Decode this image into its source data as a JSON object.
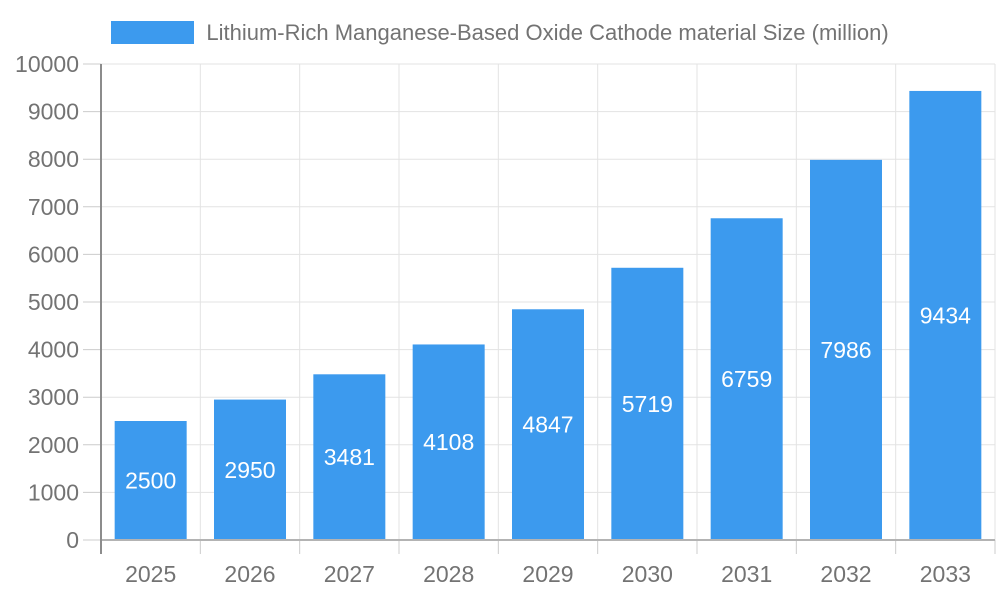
{
  "legend": {
    "label": "Lithium-Rich Manganese-Based Oxide Cathode material Size (million)"
  },
  "colors": {
    "bar": "#3C9AEE",
    "bar_label": "#FFFFFF",
    "axis_text": "#737373",
    "legend_text": "#737373",
    "y_axis_line": "#8C8C8C",
    "x_axis_line": "#B3B3B3",
    "gridline": "#E3E3E3",
    "tick": "#CCCCCC",
    "background": "#FFFFFF"
  },
  "chart_data": {
    "type": "bar",
    "title": "Lithium-Rich Manganese-Based Oxide Cathode material Size (million)",
    "categories": [
      "2025",
      "2026",
      "2027",
      "2028",
      "2029",
      "2030",
      "2031",
      "2032",
      "2033"
    ],
    "values": [
      2500,
      2950,
      3481,
      4108,
      4847,
      5719,
      6759,
      7986,
      9434
    ],
    "series_name": "Lithium-Rich Manganese-Based Oxide Cathode material Size (million)",
    "xlabel": "",
    "ylabel": "",
    "ylim": [
      0,
      10000
    ],
    "y_tick_step": 1000,
    "y_tick_labels": [
      "0",
      "1000",
      "2000",
      "3000",
      "4000",
      "5000",
      "6000",
      "7000",
      "8000",
      "9000",
      "10000"
    ],
    "grid": true,
    "legend_position": "top",
    "value_labels": "inside-center"
  }
}
